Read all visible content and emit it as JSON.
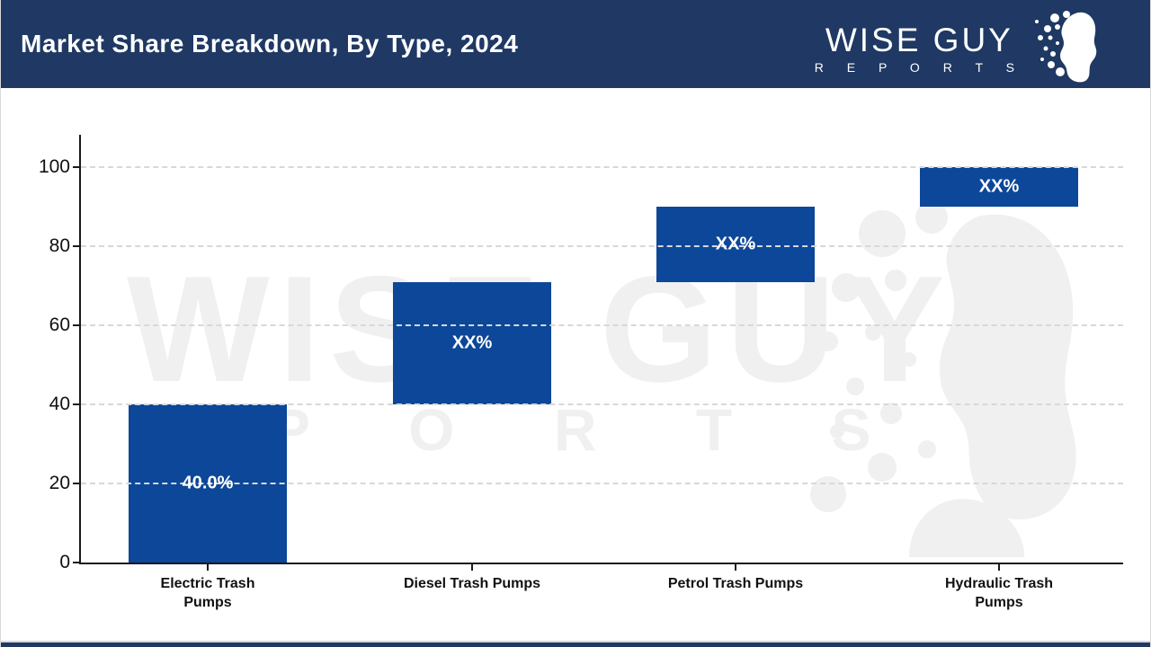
{
  "header": {
    "title": "Market Share Breakdown, By Type, 2024",
    "logo_line1": "WISE GUY",
    "logo_line2": "R E P O R T S",
    "bg_color": "#1f3864"
  },
  "watermark": {
    "line1": "WISE GUY",
    "line2": "P O R T S"
  },
  "chart_data": {
    "type": "bar",
    "subtype": "waterfall",
    "title": "Market Share Breakdown, By Type, 2024",
    "xlabel": "",
    "ylabel": "",
    "grid": true,
    "grid_style": "dashed",
    "legend": false,
    "bar_color": "#0c4799",
    "ylim": [
      0,
      105
    ],
    "y_ticks": [
      0,
      20,
      40,
      60,
      80,
      100
    ],
    "categories": [
      "Electric Trash\nPumps",
      "Diesel Trash Pumps",
      "Petrol Trash Pumps",
      "Hydraulic Trash\nPumps"
    ],
    "segments": [
      {
        "category": "Electric Trash Pumps",
        "start": 0,
        "end": 40,
        "value": 40,
        "label": "40.0%"
      },
      {
        "category": "Diesel Trash Pumps",
        "start": 40,
        "end": 71,
        "value": 31,
        "label": "XX%"
      },
      {
        "category": "Petrol Trash Pumps",
        "start": 71,
        "end": 90,
        "value": 19,
        "label": "XX%"
      },
      {
        "category": "Hydraulic Trash Pumps",
        "start": 90,
        "end": 100,
        "value": 10,
        "label": "XX%"
      }
    ]
  }
}
